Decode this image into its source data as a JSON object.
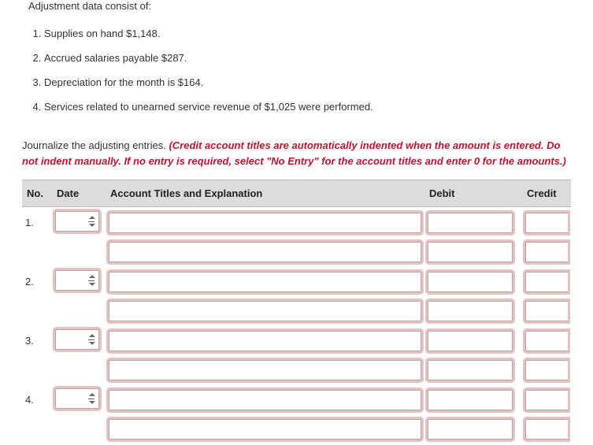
{
  "heading": "Adjustment data consist of:",
  "data_items": [
    "Supplies on hand $1,148.",
    "Accrued salaries payable $287.",
    "Depreciation for the month is $164.",
    "Services related to unearned service revenue of $1,025 were performed."
  ],
  "instruction_black": "Journalize the adjusting entries. ",
  "instruction_red": "(Credit account titles are automatically indented when the amount is entered. Do not indent manually. If no entry is required, select \"No Entry\" for the account titles and enter 0 for the amounts.)",
  "columns": {
    "no": "No.",
    "date": "Date",
    "acct": "Account Titles and Explanation",
    "debit": "Debit",
    "credit": "Credit"
  },
  "rows": [
    {
      "no": "1."
    },
    {
      "no": ""
    },
    {
      "no": "2."
    },
    {
      "no": ""
    },
    {
      "no": "3."
    },
    {
      "no": ""
    },
    {
      "no": "4."
    },
    {
      "no": ""
    }
  ],
  "styling": {
    "red_color": "#c8102e",
    "text_color": "#333333",
    "header_bg": "#dcdcdc",
    "input_glow": "#e7c0c0",
    "input_border": "#aaaaaa",
    "font_size_body": 13
  }
}
